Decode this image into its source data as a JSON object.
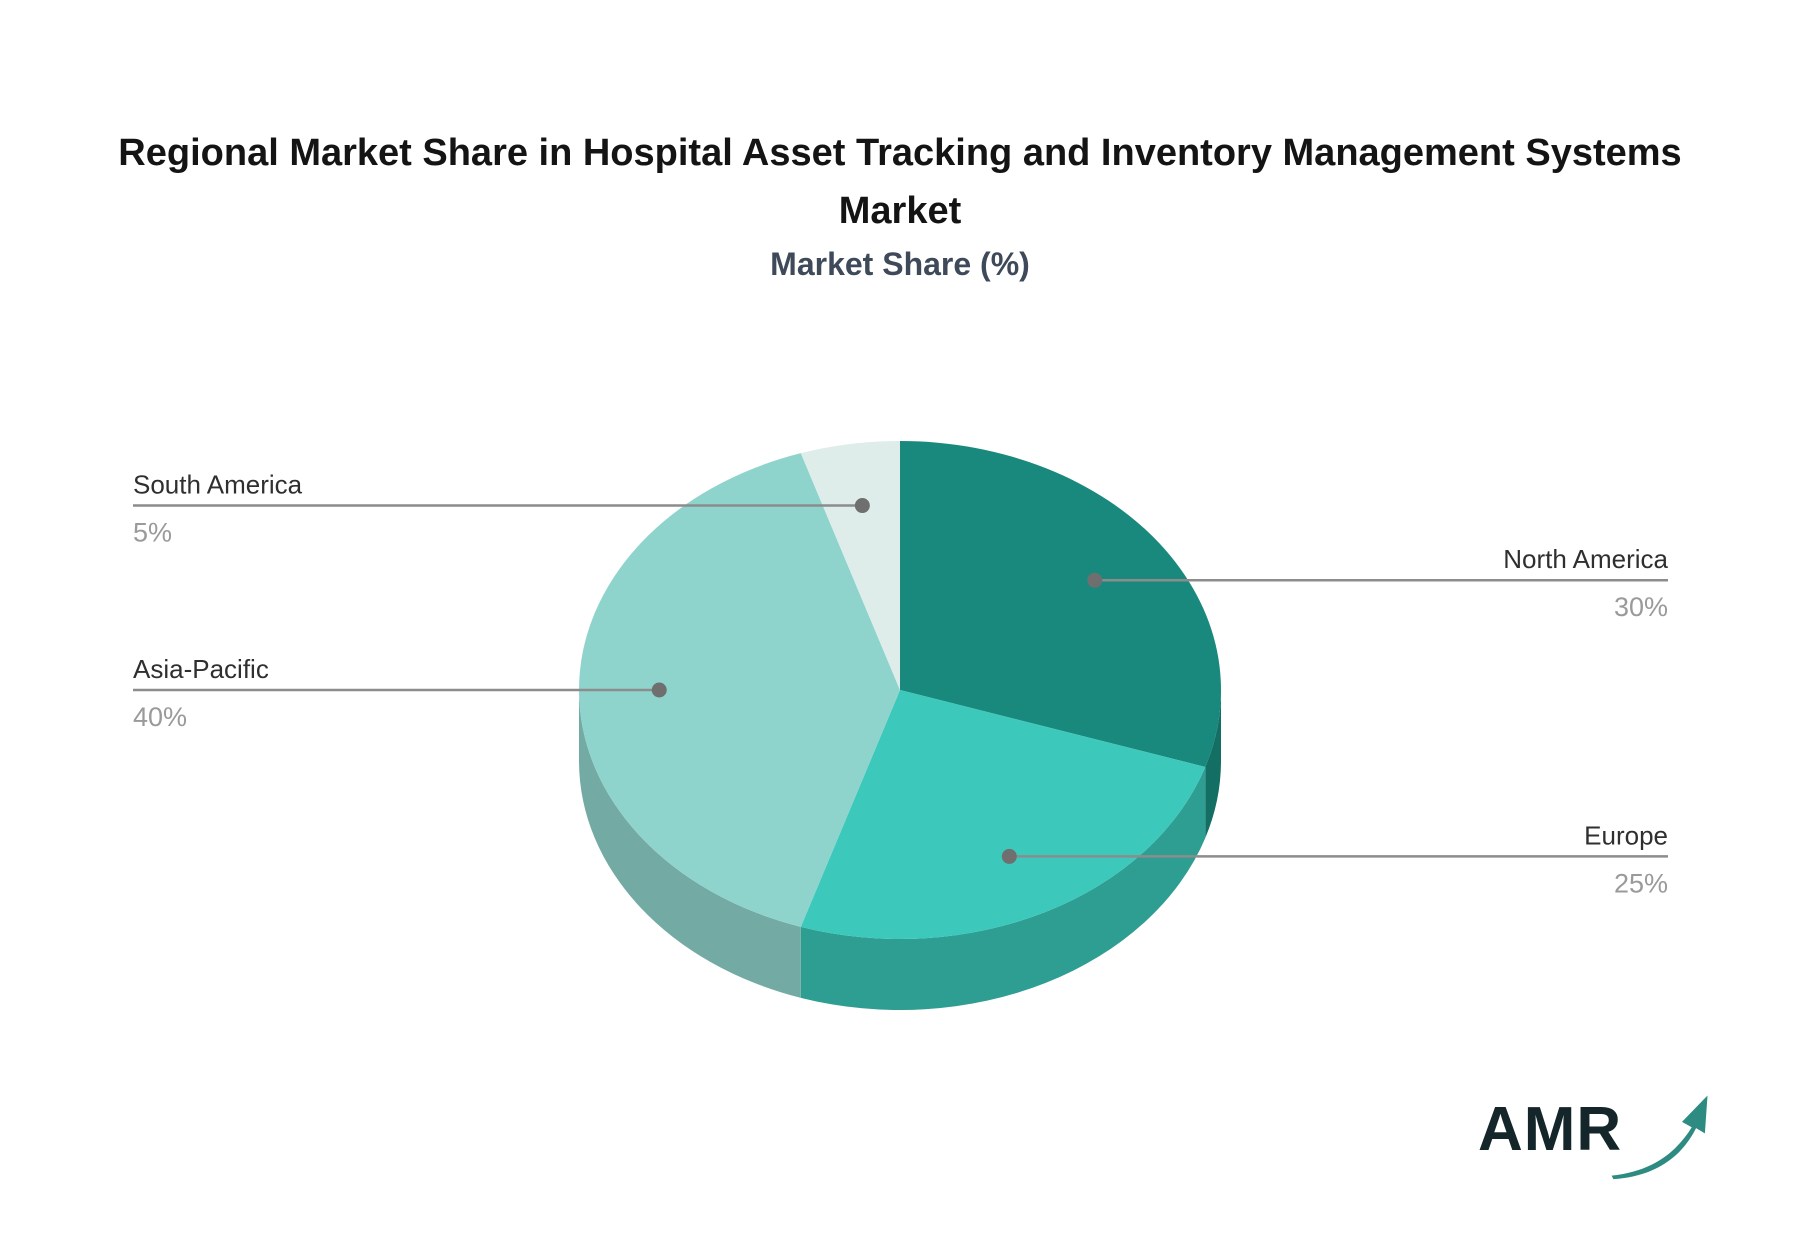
{
  "title": "Regional Market Share in Hospital Asset Tracking and Inventory Management Systems Market",
  "subtitle": "Market Share (%)",
  "logo": {
    "text": "AMR",
    "text_color": "#15262B",
    "arrow_color": "#2E8B82"
  },
  "chart_data": {
    "type": "pie",
    "title": "Regional Market Share in Hospital Asset Tracking and Inventory Management Systems Market",
    "subtitle": "Market Share (%)",
    "unit": "%",
    "style": "3d-pie",
    "start_angle_deg": 0,
    "direction": "clockwise",
    "legend": "none",
    "slices": [
      {
        "label": "North America",
        "value": 30,
        "display_value": "30%",
        "color": "#19897E",
        "side_color": "#136E64",
        "label_side": "right"
      },
      {
        "label": "Europe",
        "value": 25,
        "display_value": "25%",
        "color": "#3CC9BC",
        "side_color": "#2E9D92",
        "label_side": "right"
      },
      {
        "label": "Asia-Pacific",
        "value": 40,
        "display_value": "40%",
        "color": "#8FD4CC",
        "side_color": "#73ABA4",
        "label_side": "left"
      },
      {
        "label": "South America",
        "value": 5,
        "display_value": "5%",
        "color": "#DEEDEA",
        "side_color": "#C2D8D4",
        "label_side": "left"
      }
    ],
    "label_color": "#2F2F2F",
    "value_color": "#9A9A9A",
    "leader_line_color": "#8C8C8C",
    "leader_dot_color": "#6F6F6F"
  }
}
